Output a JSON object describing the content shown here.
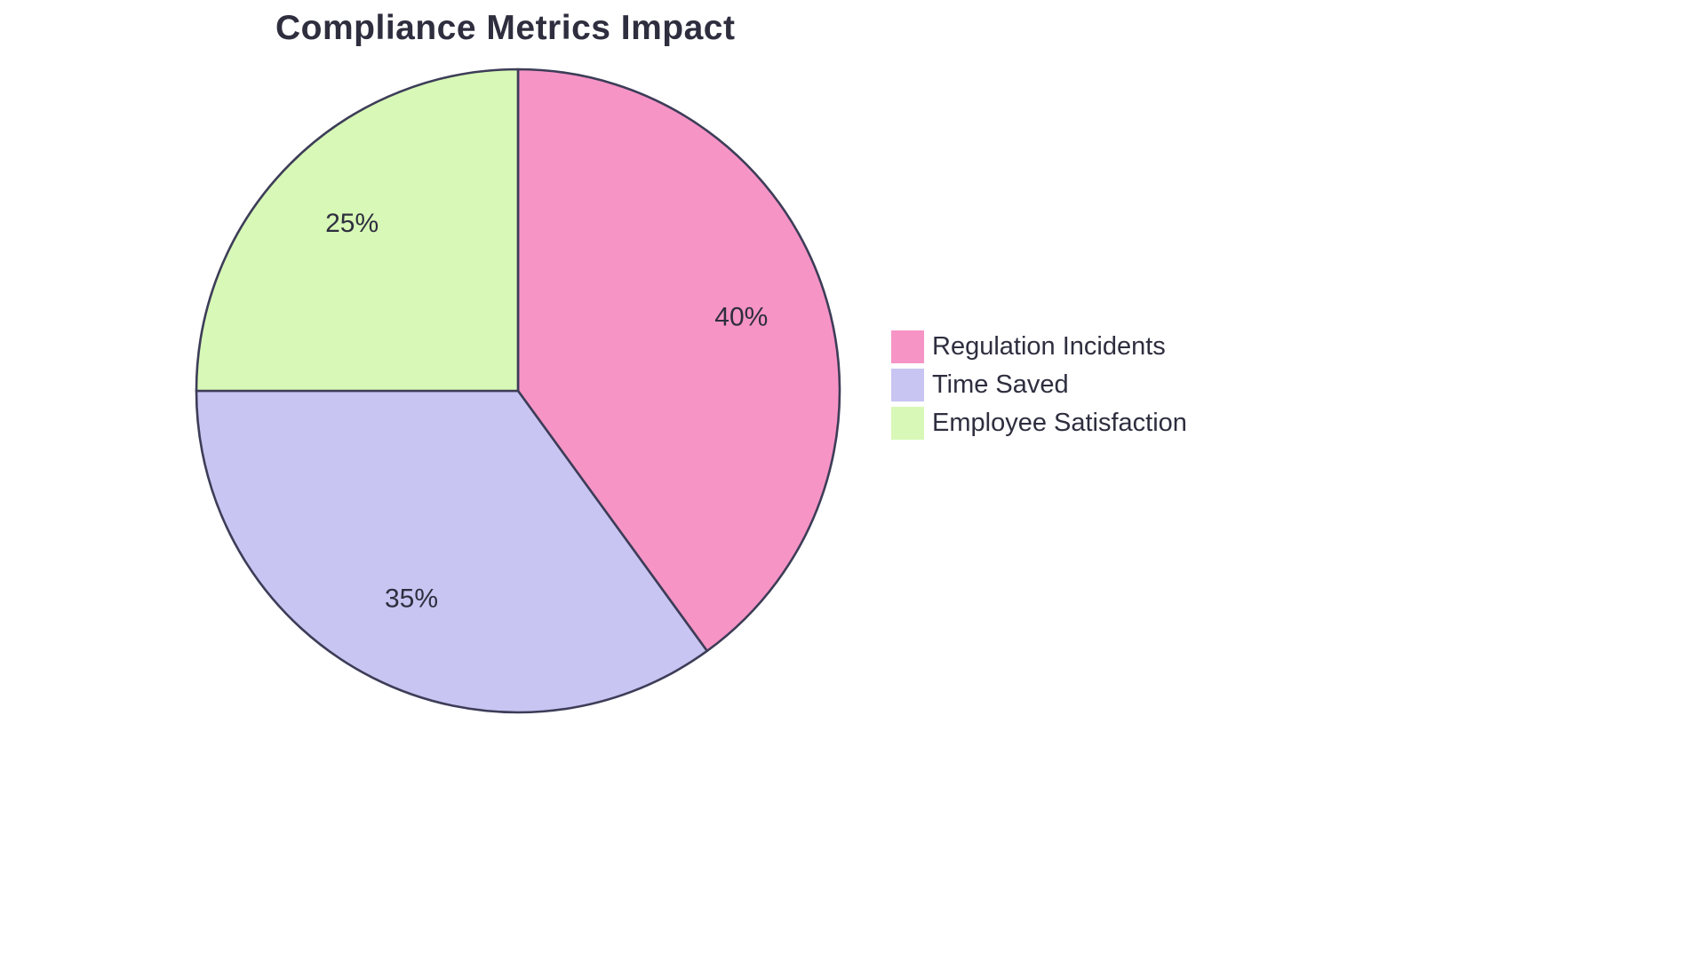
{
  "chart_data": {
    "type": "pie",
    "title": "Compliance Metrics Impact",
    "labels": [
      "Regulation Incidents",
      "Time Saved",
      "Employee Satisfaction"
    ],
    "values": [
      40,
      35,
      25
    ],
    "slice_labels": [
      "40%",
      "35%",
      "25%"
    ],
    "colors": [
      "#f794c6",
      "#c8c5f2",
      "#d8f8b7"
    ],
    "stroke_color": "#3d3d58",
    "text_color": "#2e2e3f",
    "legend_position": "right",
    "start_angle_deg": 0,
    "direction": "clockwise",
    "total": 100
  }
}
